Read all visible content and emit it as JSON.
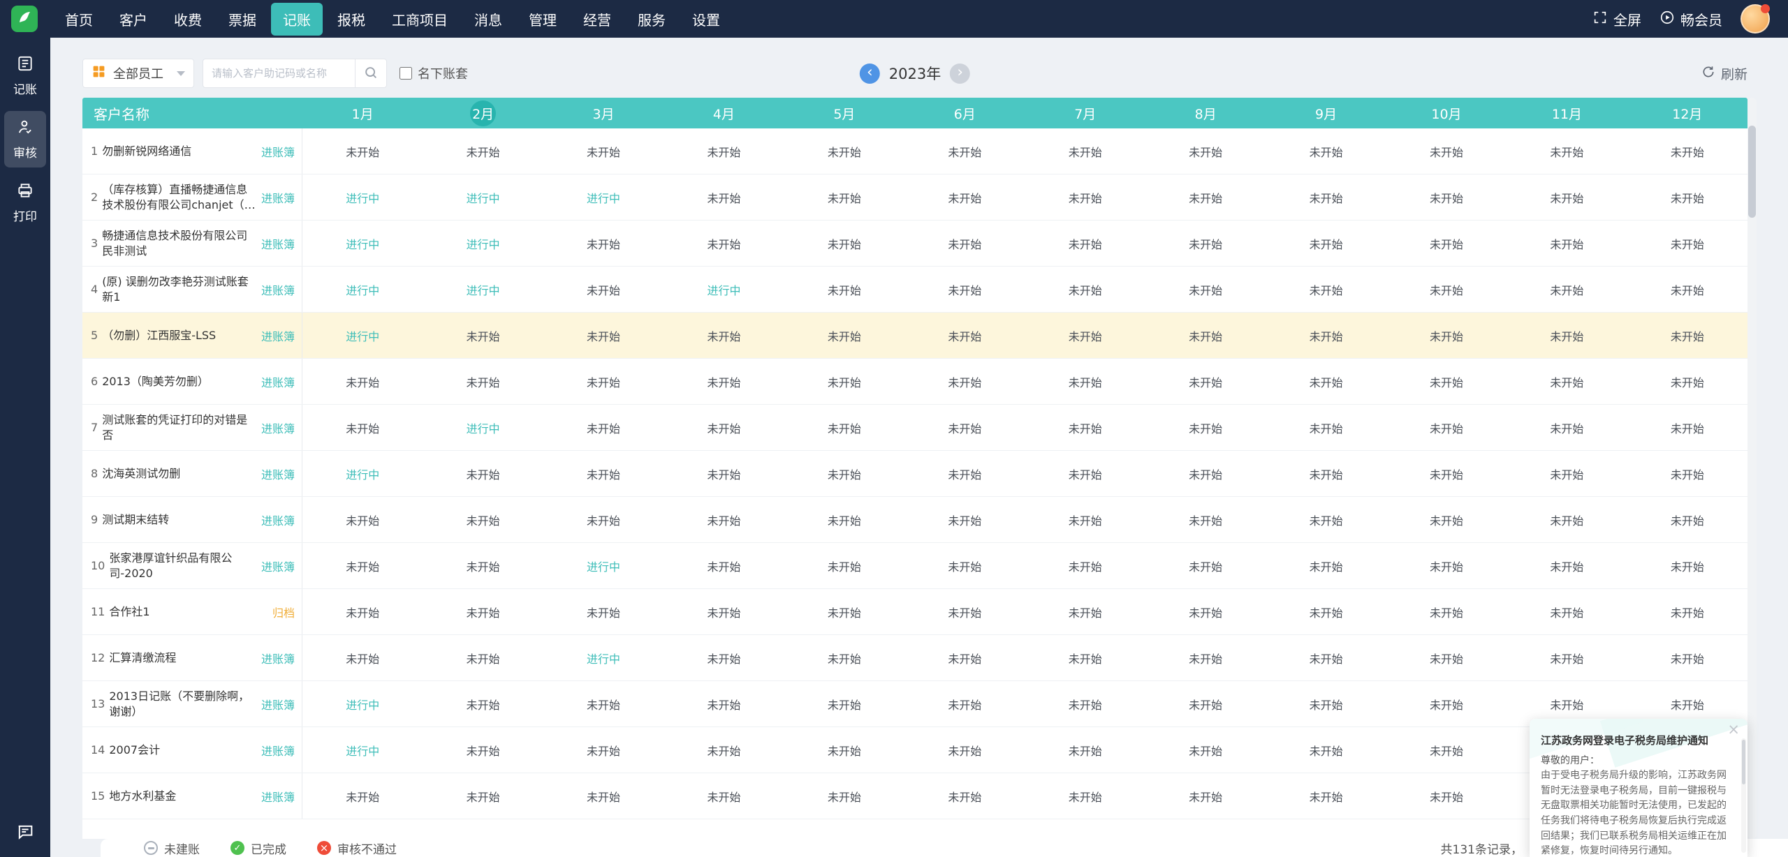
{
  "colors": {
    "navy": "#1c2a44",
    "accent_teal": "#3dbdb8",
    "header_teal": "#4bc7c2",
    "active_month_teal": "#28b4ae",
    "highlight_yellow": "#fdf6dc",
    "link_orange": "#f0ad36",
    "success_green": "#4fc14f",
    "error_red": "#ef4c38",
    "prev_blue": "#4f94e5",
    "logo_green": "#2fb456"
  },
  "topbar": {
    "nav_items": [
      "首页",
      "客户",
      "收费",
      "票据",
      "记账",
      "报税",
      "工商项目",
      "消息",
      "管理",
      "经营",
      "服务",
      "设置"
    ],
    "active_item": "记账",
    "fullscreen_label": "全屏",
    "member_label": "畅会员"
  },
  "sidebar": {
    "items": [
      {
        "label": "记账",
        "icon": "ledger-icon",
        "active": false
      },
      {
        "label": "审核",
        "icon": "audit-icon",
        "active": true
      },
      {
        "label": "打印",
        "icon": "print-icon",
        "active": false
      }
    ]
  },
  "toolbar": {
    "employee_filter_value": "全部员工",
    "search_placeholder": "请输入客户助记码或名称",
    "scope_checkbox_label": "名下账套",
    "year_label": "2023年",
    "refresh_label": "刷新"
  },
  "table": {
    "customer_header": "客户名称",
    "month_headers": [
      "1月",
      "2月",
      "3月",
      "4月",
      "5月",
      "6月",
      "7月",
      "8月",
      "9月",
      "10月",
      "11月",
      "12月"
    ],
    "active_month_index": 1,
    "status_in_progress": "进行中",
    "status_not_started": "未开始",
    "rows": [
      {
        "num": "1",
        "name": "勿删新锐网络通信",
        "action": "进账簿",
        "archived": false,
        "highlight": false,
        "statuses": [
          "未开始",
          "未开始",
          "未开始",
          "未开始",
          "未开始",
          "未开始",
          "未开始",
          "未开始",
          "未开始",
          "未开始",
          "未开始",
          "未开始"
        ]
      },
      {
        "num": "2",
        "name": "（库存核算）直播畅捷通信息技术股份有限公司chanjet（原账套）",
        "action": "进账簿",
        "archived": false,
        "highlight": false,
        "statuses": [
          "进行中",
          "进行中",
          "进行中",
          "未开始",
          "未开始",
          "未开始",
          "未开始",
          "未开始",
          "未开始",
          "未开始",
          "未开始",
          "未开始"
        ]
      },
      {
        "num": "3",
        "name": "畅捷通信息技术股份有限公司民非测试",
        "action": "进账簿",
        "archived": false,
        "highlight": false,
        "statuses": [
          "进行中",
          "进行中",
          "未开始",
          "未开始",
          "未开始",
          "未开始",
          "未开始",
          "未开始",
          "未开始",
          "未开始",
          "未开始",
          "未开始"
        ]
      },
      {
        "num": "4",
        "name": "(原) 误删勿改李艳芬测试账套新1",
        "action": "进账簿",
        "archived": false,
        "highlight": false,
        "statuses": [
          "进行中",
          "进行中",
          "未开始",
          "进行中",
          "未开始",
          "未开始",
          "未开始",
          "未开始",
          "未开始",
          "未开始",
          "未开始",
          "未开始"
        ]
      },
      {
        "num": "5",
        "name": "（勿删）江西服宝-LSS",
        "action": "进账簿",
        "archived": false,
        "highlight": true,
        "statuses": [
          "进行中",
          "未开始",
          "未开始",
          "未开始",
          "未开始",
          "未开始",
          "未开始",
          "未开始",
          "未开始",
          "未开始",
          "未开始",
          "未开始"
        ]
      },
      {
        "num": "6",
        "name": "2013（陶美芳勿删）",
        "action": "进账簿",
        "archived": false,
        "highlight": false,
        "statuses": [
          "未开始",
          "未开始",
          "未开始",
          "未开始",
          "未开始",
          "未开始",
          "未开始",
          "未开始",
          "未开始",
          "未开始",
          "未开始",
          "未开始"
        ]
      },
      {
        "num": "7",
        "name": "测试账套的凭证打印的对错是否",
        "action": "进账簿",
        "archived": false,
        "highlight": false,
        "statuses": [
          "未开始",
          "进行中",
          "未开始",
          "未开始",
          "未开始",
          "未开始",
          "未开始",
          "未开始",
          "未开始",
          "未开始",
          "未开始",
          "未开始"
        ]
      },
      {
        "num": "8",
        "name": "沈海英测试勿删",
        "action": "进账簿",
        "archived": false,
        "highlight": false,
        "statuses": [
          "进行中",
          "未开始",
          "未开始",
          "未开始",
          "未开始",
          "未开始",
          "未开始",
          "未开始",
          "未开始",
          "未开始",
          "未开始",
          "未开始"
        ]
      },
      {
        "num": "9",
        "name": "测试期末结转",
        "action": "进账簿",
        "archived": false,
        "highlight": false,
        "statuses": [
          "未开始",
          "未开始",
          "未开始",
          "未开始",
          "未开始",
          "未开始",
          "未开始",
          "未开始",
          "未开始",
          "未开始",
          "未开始",
          "未开始"
        ]
      },
      {
        "num": "10",
        "name": "张家港厚谊针织品有限公司-2020",
        "action": "进账簿",
        "archived": false,
        "highlight": false,
        "statuses": [
          "未开始",
          "未开始",
          "进行中",
          "未开始",
          "未开始",
          "未开始",
          "未开始",
          "未开始",
          "未开始",
          "未开始",
          "未开始",
          "未开始"
        ]
      },
      {
        "num": "11",
        "name": "合作社1",
        "action": "归档",
        "archived": true,
        "highlight": false,
        "statuses": [
          "未开始",
          "未开始",
          "未开始",
          "未开始",
          "未开始",
          "未开始",
          "未开始",
          "未开始",
          "未开始",
          "未开始",
          "未开始",
          "未开始"
        ]
      },
      {
        "num": "12",
        "name": "汇算清缴流程",
        "action": "进账簿",
        "archived": false,
        "highlight": false,
        "statuses": [
          "未开始",
          "未开始",
          "进行中",
          "未开始",
          "未开始",
          "未开始",
          "未开始",
          "未开始",
          "未开始",
          "未开始",
          "未开始",
          "未开始"
        ]
      },
      {
        "num": "13",
        "name": "2013日记账（不要删除啊，谢谢）",
        "action": "进账簿",
        "archived": false,
        "highlight": false,
        "statuses": [
          "进行中",
          "未开始",
          "未开始",
          "未开始",
          "未开始",
          "未开始",
          "未开始",
          "未开始",
          "未开始",
          "未开始",
          "未开始",
          "未开始"
        ]
      },
      {
        "num": "14",
        "name": "2007会计",
        "action": "进账簿",
        "archived": false,
        "highlight": false,
        "statuses": [
          "进行中",
          "未开始",
          "未开始",
          "未开始",
          "未开始",
          "未开始",
          "未开始",
          "未开始",
          "未开始",
          "未开始",
          "未开始",
          "未开始"
        ]
      },
      {
        "num": "15",
        "name": "地方水利基金",
        "action": "进账簿",
        "archived": false,
        "highlight": false,
        "statuses": [
          "未开始",
          "未开始",
          "未开始",
          "未开始",
          "未开始",
          "未开始",
          "未开始",
          "未开始",
          "未开始",
          "未开始",
          "未开始",
          "未开始"
        ]
      }
    ]
  },
  "statusbar": {
    "legend": [
      {
        "label": "未建账",
        "type": "gray",
        "icon": "not-created-icon"
      },
      {
        "label": "已完成",
        "type": "green",
        "icon": "completed-icon"
      },
      {
        "label": "审核不通过",
        "type": "red",
        "icon": "audit-failed-icon"
      }
    ],
    "total_text": "共131条记录，"
  },
  "notice": {
    "title": "江苏政务网登录电子税务局维护通知",
    "greeting": "尊敬的用户：",
    "body": "由于受电子税务局升级的影响，江苏政务网暂时无法登录电子税务局，目前一键报税与无盘取票相关功能暂时无法使用，已发起的任务我们将待电子税务局恢复后执行完成返回结果；我们已联系税务局相关运维正在加紧修复，恢复时间待另行通知。"
  }
}
